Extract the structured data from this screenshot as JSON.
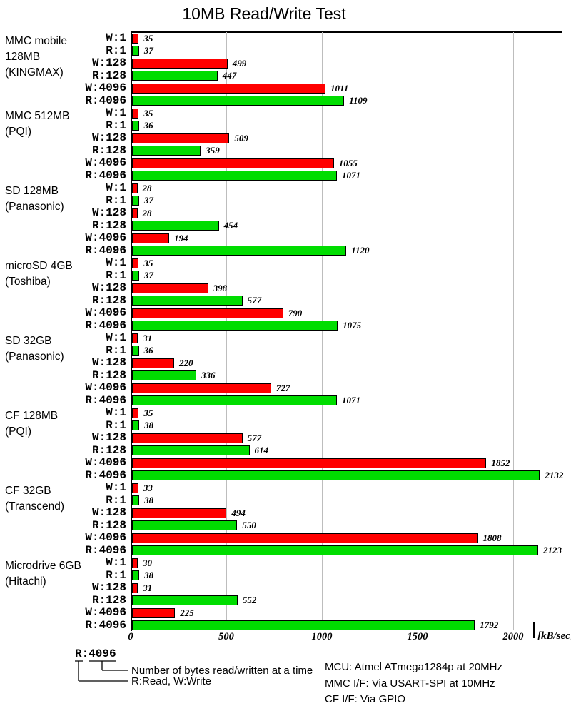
{
  "title": "10MB Read/Write Test",
  "chart_data": {
    "type": "bar",
    "orientation": "horizontal",
    "title": "10MB Read/Write Test",
    "unit_label": "[kB/sec]",
    "x_ticks": [
      0,
      500,
      1000,
      1500,
      2000
    ],
    "x_max": 2250,
    "grid": true,
    "colors": {
      "write_bar": "#ff0000",
      "read_bar": "#00dd00",
      "gridline": "#bdbdbd",
      "axis": "#000000"
    },
    "row_labels": [
      "W:1",
      "R:1",
      "W:128",
      "R:128",
      "W:4096",
      "R:4096"
    ],
    "groups": [
      {
        "label_lines": [
          "MMC mobile",
          "128MB",
          "(KINGMAX)"
        ],
        "values": [
          35,
          37,
          499,
          447,
          1011,
          1109
        ]
      },
      {
        "label_lines": [
          "MMC 512MB",
          "(PQI)"
        ],
        "values": [
          35,
          36,
          509,
          359,
          1055,
          1071
        ]
      },
      {
        "label_lines": [
          "SD 128MB",
          "(Panasonic)"
        ],
        "values": [
          28,
          37,
          28,
          454,
          194,
          1120
        ]
      },
      {
        "label_lines": [
          "microSD 4GB",
          "(Toshiba)"
        ],
        "values": [
          35,
          37,
          398,
          577,
          790,
          1075
        ]
      },
      {
        "label_lines": [
          "SD 32GB",
          "(Panasonic)"
        ],
        "values": [
          31,
          36,
          220,
          336,
          727,
          1071
        ]
      },
      {
        "label_lines": [
          "CF 128MB",
          "(PQI)"
        ],
        "values": [
          35,
          38,
          577,
          614,
          1852,
          2132
        ]
      },
      {
        "label_lines": [
          "CF 32GB",
          "(Transcend)"
        ],
        "values": [
          33,
          38,
          494,
          550,
          1808,
          2123
        ]
      },
      {
        "label_lines": [
          "Microdrive 6GB",
          "(Hitachi)"
        ],
        "values": [
          30,
          38,
          31,
          552,
          225,
          1792
        ]
      }
    ]
  },
  "legend": {
    "example_label": "R:4096",
    "bytes_note": "Number of bytes read/written at a time",
    "rw_note": "R:Read, W:Write"
  },
  "footer_info": {
    "lines": [
      "MCU: Atmel ATmega1284p at 20MHz",
      "MMC I/F: Via USART-SPI at 10MHz",
      "CF I/F: Via GPIO"
    ]
  }
}
